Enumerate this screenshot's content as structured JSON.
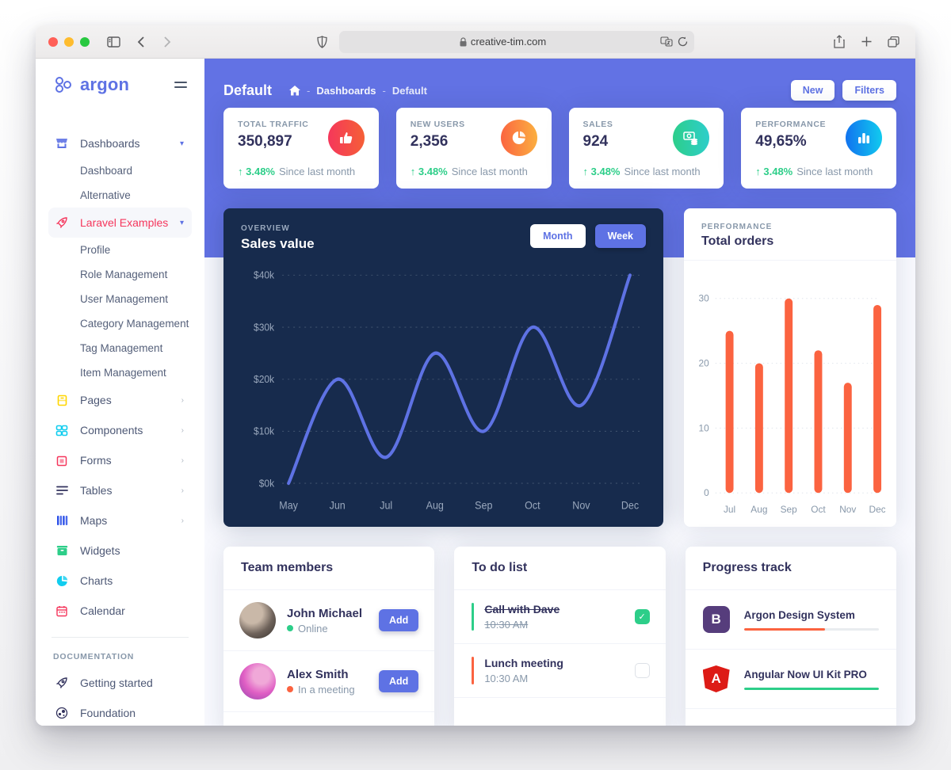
{
  "browser": {
    "url": "creative-tim.com"
  },
  "sidebar": {
    "logo": "argon",
    "dashboards": "Dashboards",
    "dashboard": "Dashboard",
    "alternative": "Alternative",
    "laravel": "Laravel Examples",
    "profile": "Profile",
    "role": "Role Management",
    "user": "User Management",
    "category": "Category Management",
    "tag": "Tag Management",
    "item": "Item Management",
    "pages": "Pages",
    "components": "Components",
    "forms": "Forms",
    "tables": "Tables",
    "maps": "Maps",
    "widgets": "Widgets",
    "charts": "Charts",
    "calendar": "Calendar",
    "documentation": "DOCUMENTATION",
    "getting_started": "Getting started",
    "foundation": "Foundation"
  },
  "header": {
    "title": "Default",
    "sep": "-",
    "breadcrumb_1": "Dashboards",
    "breadcrumb_2": "Default",
    "btn_new": "New",
    "btn_filters": "Filters"
  },
  "stats": [
    {
      "label": "TOTAL TRAFFIC",
      "value": "350,897",
      "delta": "3.48%",
      "caption": "Since last month",
      "icon": "thumb-up",
      "accent": "#f5365c"
    },
    {
      "label": "NEW USERS",
      "value": "2,356",
      "delta": "3.48%",
      "caption": "Since last month",
      "icon": "pie-chart",
      "accent": "#fb6340"
    },
    {
      "label": "SALES",
      "value": "924",
      "delta": "3.48%",
      "caption": "Since last month",
      "icon": "money-coins",
      "accent": "#2dce89"
    },
    {
      "label": "PERFORMANCE",
      "value": "49,65%",
      "delta": "3.48%",
      "caption": "Since last month",
      "icon": "bar-chart",
      "accent": "#1171ef"
    }
  ],
  "sales_card": {
    "overline": "OVERVIEW",
    "title": "Sales value",
    "btn_month": "Month",
    "btn_week": "Week"
  },
  "orders_card": {
    "overline": "PERFORMANCE",
    "title": "Total orders"
  },
  "team": {
    "title": "Team members",
    "members": [
      {
        "name": "John Michael",
        "status": "Online",
        "status_color": "green",
        "action": "Add"
      },
      {
        "name": "Alex Smith",
        "status": "In a meeting",
        "status_color": "orange",
        "action": "Add"
      }
    ]
  },
  "todo": {
    "title": "To do list",
    "items": [
      {
        "title": "Call with Dave",
        "time": "10:30 AM",
        "done": true,
        "accent": "green"
      },
      {
        "title": "Lunch meeting",
        "time": "10:30 AM",
        "done": false,
        "accent": "orange"
      }
    ]
  },
  "progress": {
    "title": "Progress track",
    "items": [
      {
        "name": "Argon Design System",
        "brand": "bootstrap",
        "percent": 60,
        "color": "#fb6340"
      },
      {
        "name": "Angular Now UI Kit PRO",
        "brand": "angular",
        "percent": 100,
        "color": "#2dce89"
      }
    ]
  },
  "chart_data": [
    {
      "type": "line",
      "title": "Sales value",
      "x": [
        "May",
        "Jun",
        "Jul",
        "Aug",
        "Sep",
        "Oct",
        "Nov",
        "Dec"
      ],
      "values": [
        0,
        20,
        5,
        25,
        10,
        30,
        15,
        40
      ],
      "yticks": [
        "$0k",
        "$10k",
        "$20k",
        "$30k",
        "$40k"
      ],
      "ytick_values": [
        0,
        10,
        20,
        30,
        40
      ],
      "ylim": [
        0,
        40
      ],
      "line_color": "#5e72e4",
      "grid": "dashed",
      "legend": "none"
    },
    {
      "type": "bar",
      "title": "Total orders",
      "categories": [
        "Jul",
        "Aug",
        "Sep",
        "Oct",
        "Nov",
        "Dec"
      ],
      "values": [
        25,
        20,
        30,
        22,
        17,
        29
      ],
      "yticks": [
        0,
        10,
        20,
        30
      ],
      "ylim": [
        0,
        30
      ],
      "bar_color": "#fb6340",
      "grid": "dotted",
      "legend": "none"
    }
  ]
}
